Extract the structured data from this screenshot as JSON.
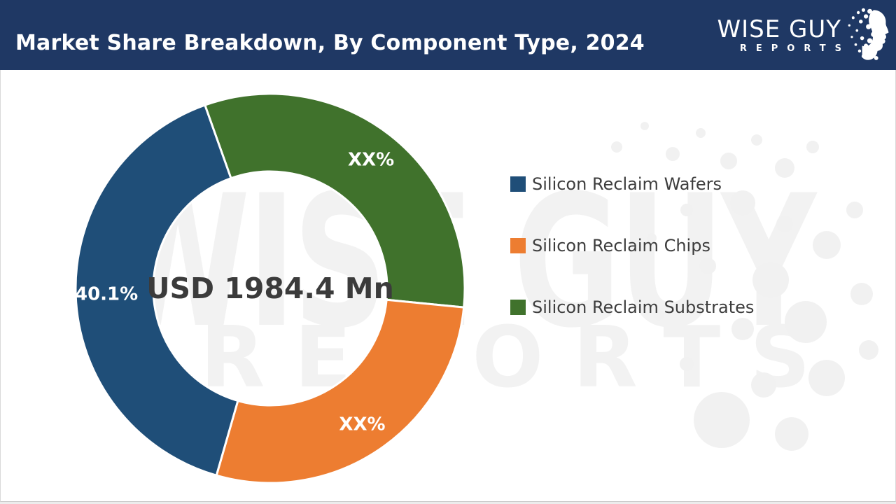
{
  "header": {
    "title": "Market Share Breakdown, By Component Type, 2024",
    "logo": {
      "line1": "WISE GUY",
      "line2": "REPORTS"
    }
  },
  "watermark": {
    "line1": "WISE GUY",
    "line2": "REPORTS"
  },
  "chart_data": {
    "type": "pie",
    "subtype": "donut",
    "title": "Market Share Breakdown, By Component Type, 2024",
    "center_label": "USD 1984.4 Mn",
    "segments": [
      {
        "label": "Silicon Reclaim Wafers",
        "display_value": "40.1%",
        "value_pct_est": 40.1,
        "color": "#1f4e78"
      },
      {
        "label": "Silicon Reclaim Chips",
        "display_value": "XX%",
        "value_pct_est": 27.9,
        "color": "#ed7d31"
      },
      {
        "label": "Silicon Reclaim Substrates",
        "display_value": "XX%",
        "value_pct_est": 32.0,
        "color": "#40722c"
      }
    ],
    "layout": {
      "start_angle_deg": -19.6,
      "draw_order": [
        2,
        1,
        0
      ],
      "clockwise": true,
      "donut_hole_ratio": 0.6,
      "legend_position": "right",
      "segment_gap_color": "#ffffff"
    }
  }
}
